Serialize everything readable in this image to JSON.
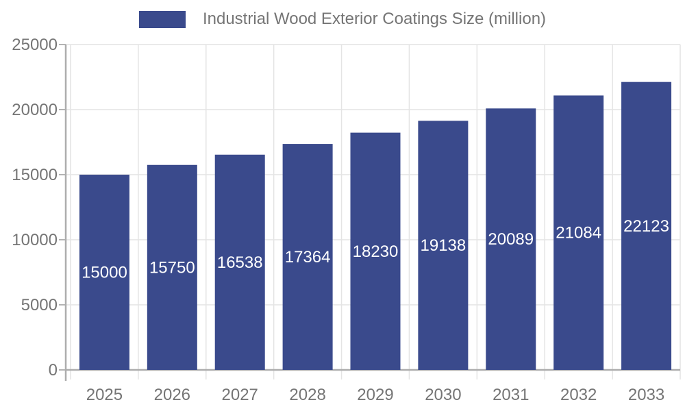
{
  "chart_data": {
    "type": "bar",
    "title": "Industrial Wood Exterior Coatings Size (million)",
    "categories": [
      "2025",
      "2026",
      "2027",
      "2028",
      "2029",
      "2030",
      "2031",
      "2032",
      "2033"
    ],
    "values": [
      15000,
      15750,
      16538,
      17364,
      18230,
      19138,
      20089,
      21084,
      22123
    ],
    "xlabel": "",
    "ylabel": "",
    "ylim": [
      0,
      25000
    ],
    "yticks": [
      0,
      5000,
      10000,
      15000,
      20000,
      25000
    ],
    "grid": true,
    "legend_position": "top",
    "value_labels_inside_bars": true,
    "colors": {
      "bar": "#3A4A8C",
      "value_label": "#FFFFFF",
      "axis_text": "#757575",
      "grid_line": "#E4E4E4",
      "axis_line": "#ADADAD",
      "tick": "#B3B3B3"
    }
  },
  "legend": {
    "label": "Industrial Wood Exterior Coatings Size (million)"
  }
}
